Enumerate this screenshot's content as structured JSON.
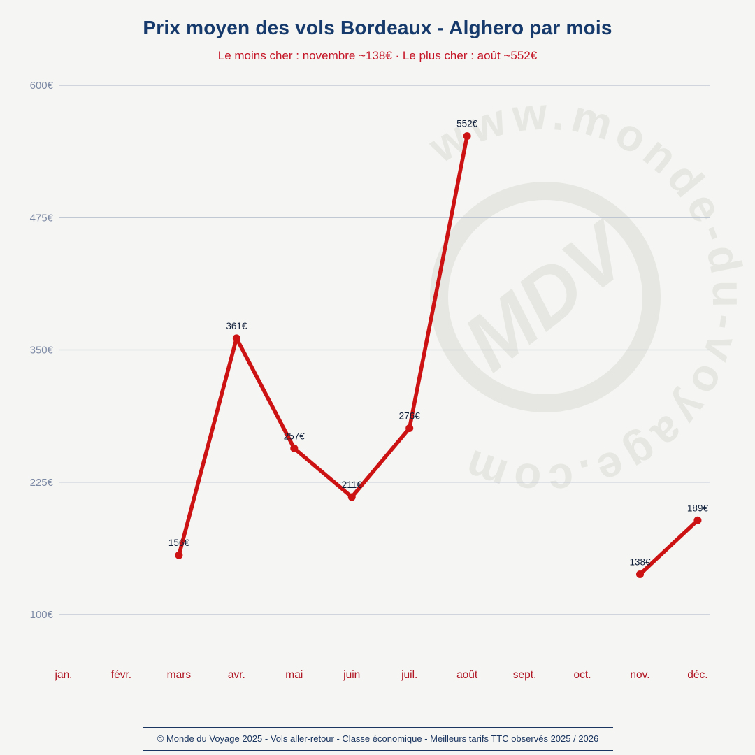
{
  "header": {
    "title": "Prix moyen des vols Bordeaux - Alghero par mois",
    "subtitle": "Le moins cher : novembre ~138€ · Le plus cher : août ~552€"
  },
  "colors": {
    "title": "#163a6b",
    "subtitle": "#c41425",
    "line": "#cc1212",
    "point_label": "#101f3a",
    "y_tick_label": "#7d8aa5",
    "x_tick_label": "#b01523",
    "gridline": "#b9c1d0",
    "watermark": "#e4e4e0",
    "footer_text": "#1a3560"
  },
  "chart_data": {
    "type": "line",
    "categories": [
      "jan.",
      "févr.",
      "mars",
      "avr.",
      "mai",
      "juin",
      "juil.",
      "août",
      "sept.",
      "oct.",
      "nov.",
      "déc."
    ],
    "values": [
      null,
      null,
      156,
      361,
      257,
      211,
      276,
      552,
      null,
      null,
      138,
      189
    ],
    "point_labels": [
      "",
      "",
      "156€",
      "361€",
      "257€",
      "211€",
      "276€",
      "552€",
      "",
      "",
      "138€",
      "189€"
    ],
    "y_ticks": [
      600,
      475,
      350,
      225,
      100
    ],
    "y_tick_labels": [
      "600€",
      "475€",
      "350€",
      "225€",
      "100€"
    ],
    "ylim": [
      100,
      600
    ],
    "grid": true,
    "title": "Prix moyen des vols Bordeaux - Alghero par mois",
    "xlabel": "",
    "ylabel": "",
    "legend": "none"
  },
  "watermark": {
    "circle_text": "www.monde-du-voyage.com",
    "center_text": "MDV"
  },
  "footer": {
    "text": "© Monde du Voyage 2025 - Vols aller-retour - Classe économique - Meilleurs tarifs TTC observés 2025 / 2026"
  }
}
